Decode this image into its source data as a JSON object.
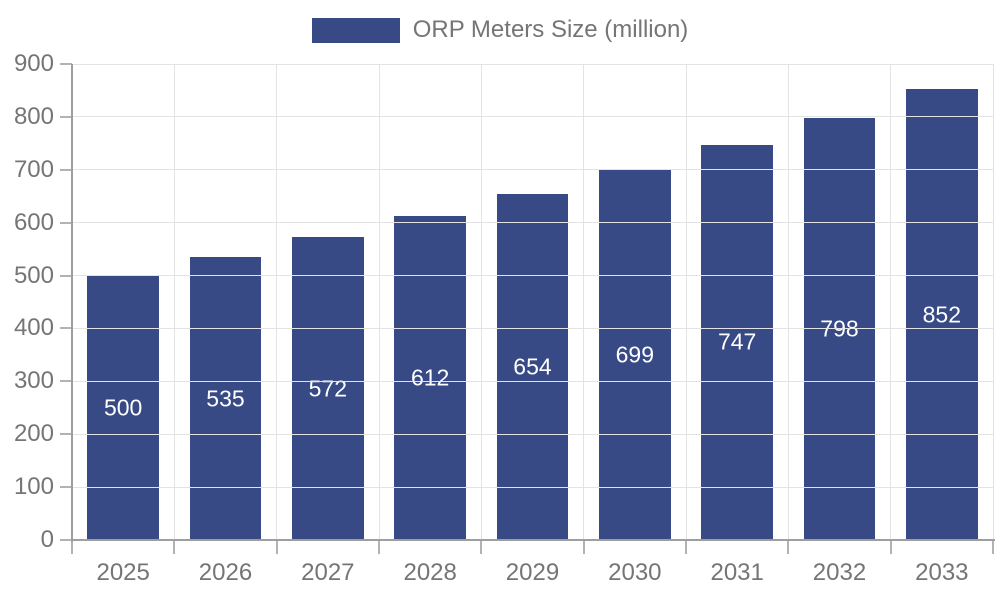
{
  "legend": {
    "label": "ORP Meters Size (million)"
  },
  "chart_data": {
    "type": "bar",
    "title": "",
    "legend_entries": [
      "ORP Meters Size (million)"
    ],
    "legend_position": "top-center",
    "categories": [
      "2025",
      "2026",
      "2027",
      "2028",
      "2029",
      "2030",
      "2031",
      "2032",
      "2033"
    ],
    "values": [
      500,
      535,
      572,
      612,
      654,
      699,
      747,
      798,
      852
    ],
    "bar_labels": [
      "500",
      "535",
      "572",
      "612",
      "654",
      "699",
      "747",
      "798",
      "852"
    ],
    "xlabel": "",
    "ylabel": "",
    "ylim": [
      0,
      900
    ],
    "yticks": [
      0,
      100,
      200,
      300,
      400,
      500,
      600,
      700,
      800,
      900
    ],
    "grid": "both",
    "colors": {
      "bar": "#374a85",
      "bar_label": "#ffffff",
      "axis": "#9e9e9e",
      "tick": "#b3b3b3",
      "grid": "#e3e3e3",
      "tick_label": "#757575",
      "legend_text": "#757575",
      "background": "#ffffff"
    }
  }
}
